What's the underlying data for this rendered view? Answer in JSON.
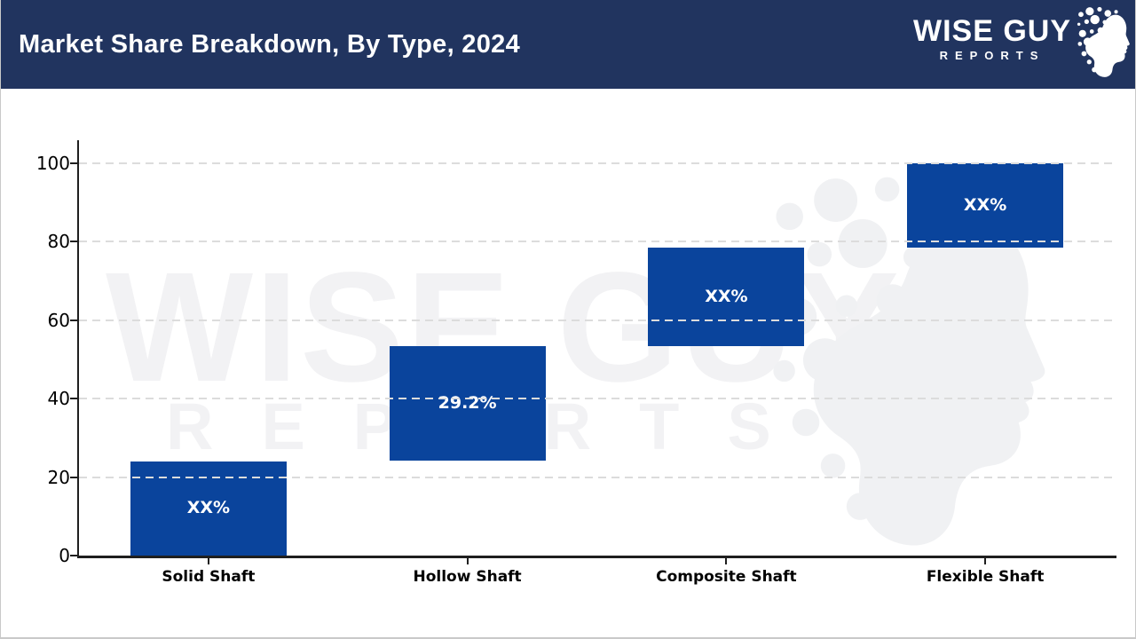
{
  "header": {
    "title": "Market Share Breakdown, By Type, 2024",
    "logo": {
      "name": "WISE GUY",
      "sub": "REPORTS"
    }
  },
  "watermark": {
    "name": "WISE GUY",
    "sub": "REPORTS"
  },
  "chart_data": {
    "type": "bar",
    "subtype": "waterfall-floating-bars",
    "title": "Market Share Breakdown, By Type, 2024",
    "categories": [
      "Solid Shaft",
      "Hollow Shaft",
      "Composite Shaft",
      "Flexible Shaft"
    ],
    "bars": [
      {
        "category": "Solid Shaft",
        "label": "XX%",
        "start": 0,
        "end": 24.1
      },
      {
        "category": "Hollow Shaft",
        "label": "29.2%",
        "start": 24.1,
        "end": 53.3
      },
      {
        "category": "Composite Shaft",
        "label": "XX%",
        "start": 53.3,
        "end": 78.5
      },
      {
        "category": "Flexible Shaft",
        "label": "XX%",
        "start": 78.5,
        "end": 100
      }
    ],
    "xlabel": "",
    "ylabel": "",
    "ylim": [
      0,
      110
    ],
    "yticks": [
      0,
      20,
      40,
      60,
      80,
      100
    ],
    "grid": "horizontal-dashed",
    "legend": "none",
    "bar_color": "#0a449c",
    "bar_label_color": "#ffffff"
  },
  "colors": {
    "header_bg": "#21345f",
    "body_bg": "#ffffff",
    "watermark": "#f2f2f4",
    "grid": "#dcdcdc",
    "axis": "#1f1f1f"
  }
}
